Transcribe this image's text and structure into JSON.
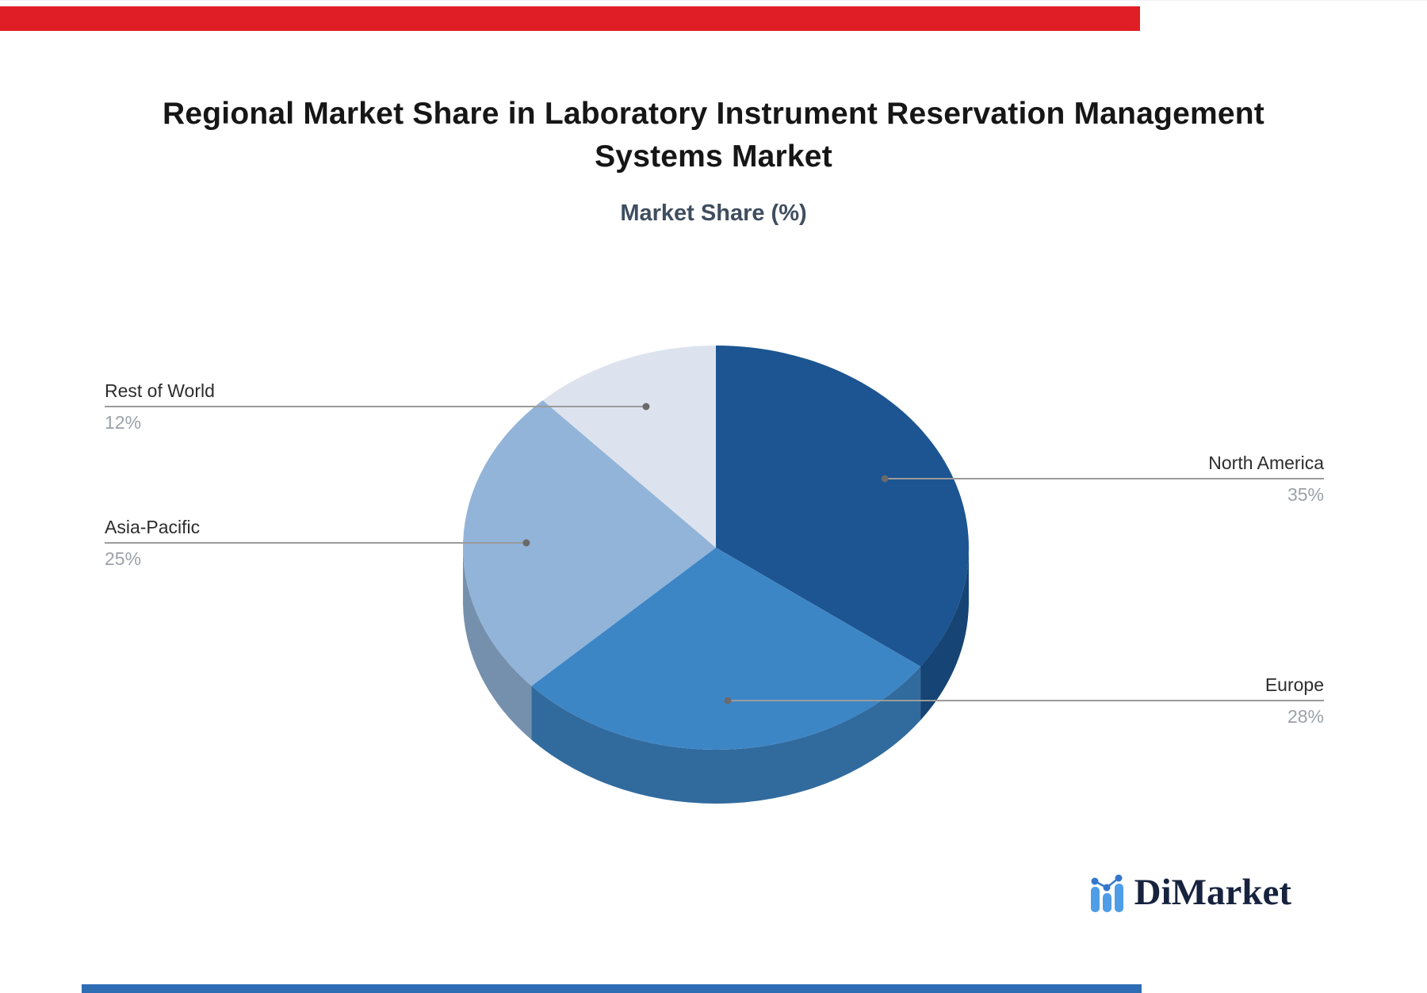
{
  "decorations": {
    "top_bar_color": "#e01e26",
    "bottom_bar_color": "#2e6db4"
  },
  "chart_data": {
    "type": "pie",
    "style": "3d",
    "title": "Regional Market Share in Laboratory Instrument Reservation Management Systems Market",
    "subtitle": "Market Share (%)",
    "unit": "%",
    "start_angle_deg": 0,
    "direction": "clockwise",
    "labels_outside": true,
    "legend": false,
    "slices": [
      {
        "label": "North America",
        "value": 35,
        "display": "35%",
        "color": "#1c5591"
      },
      {
        "label": "Europe",
        "value": 28,
        "display": "28%",
        "color": "#3d86c6"
      },
      {
        "label": "Asia-Pacific",
        "value": 25,
        "display": "25%",
        "color": "#92b4d8"
      },
      {
        "label": "Rest of World",
        "value": 12,
        "display": "12%",
        "color": "#dde3ee"
      }
    ],
    "leader_line_color": "#9b9b9b",
    "anchor_dot_color": "#6a6a6a",
    "label_text_color": "#2d2d2d",
    "value_text_color": "#9ca1a7"
  },
  "branding": {
    "logo_text": "DiMarket",
    "logo_text_color": "#17233e",
    "icon_bar_color": "#4f9de6",
    "icon_dot_color": "#3377cc"
  }
}
